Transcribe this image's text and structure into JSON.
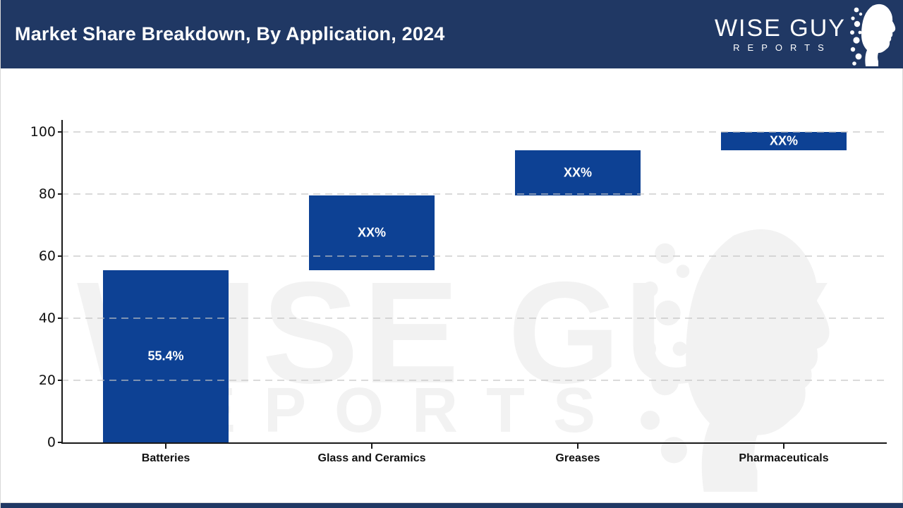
{
  "header": {
    "title": "Market Share Breakdown, By Application, 2024",
    "logo_line1": "WISE GUY",
    "logo_line2": "REPORTS"
  },
  "watermark": {
    "line1": "WISE GUY",
    "line2": "REPORTS"
  },
  "colors": {
    "header_navy": "#203864",
    "footer_navy": "#203864",
    "bar_blue": "#0d4194",
    "gridline_gray": "#d9d9d9",
    "axis_black": "#1a1a1a",
    "watermark_gray": "#f2f2f2",
    "bar_label_white": "#ffffff"
  },
  "chart_data": {
    "type": "bar",
    "subtype": "waterfall",
    "title": "Market Share Breakdown, By Application, 2024",
    "categories": [
      "Batteries",
      "Glass and Ceramics",
      "Greases",
      "Pharmaceuticals"
    ],
    "segments": [
      {
        "category": "Batteries",
        "start": 0,
        "end": 55.4,
        "label": "55.4%"
      },
      {
        "category": "Glass and Ceramics",
        "start": 55.4,
        "end": 79.5,
        "label": "XX%"
      },
      {
        "category": "Greases",
        "start": 79.5,
        "end": 94,
        "label": "XX%"
      },
      {
        "category": "Pharmaceuticals",
        "start": 94,
        "end": 100,
        "label": "XX%"
      }
    ],
    "xlabel": "",
    "ylabel": "",
    "ylim": [
      0,
      100
    ],
    "yticks": [
      0,
      20,
      40,
      60,
      80,
      100
    ],
    "grid": "horizontal-dashed",
    "legend": "none",
    "bar_color": "#0d4194",
    "label_color": "#ffffff"
  }
}
